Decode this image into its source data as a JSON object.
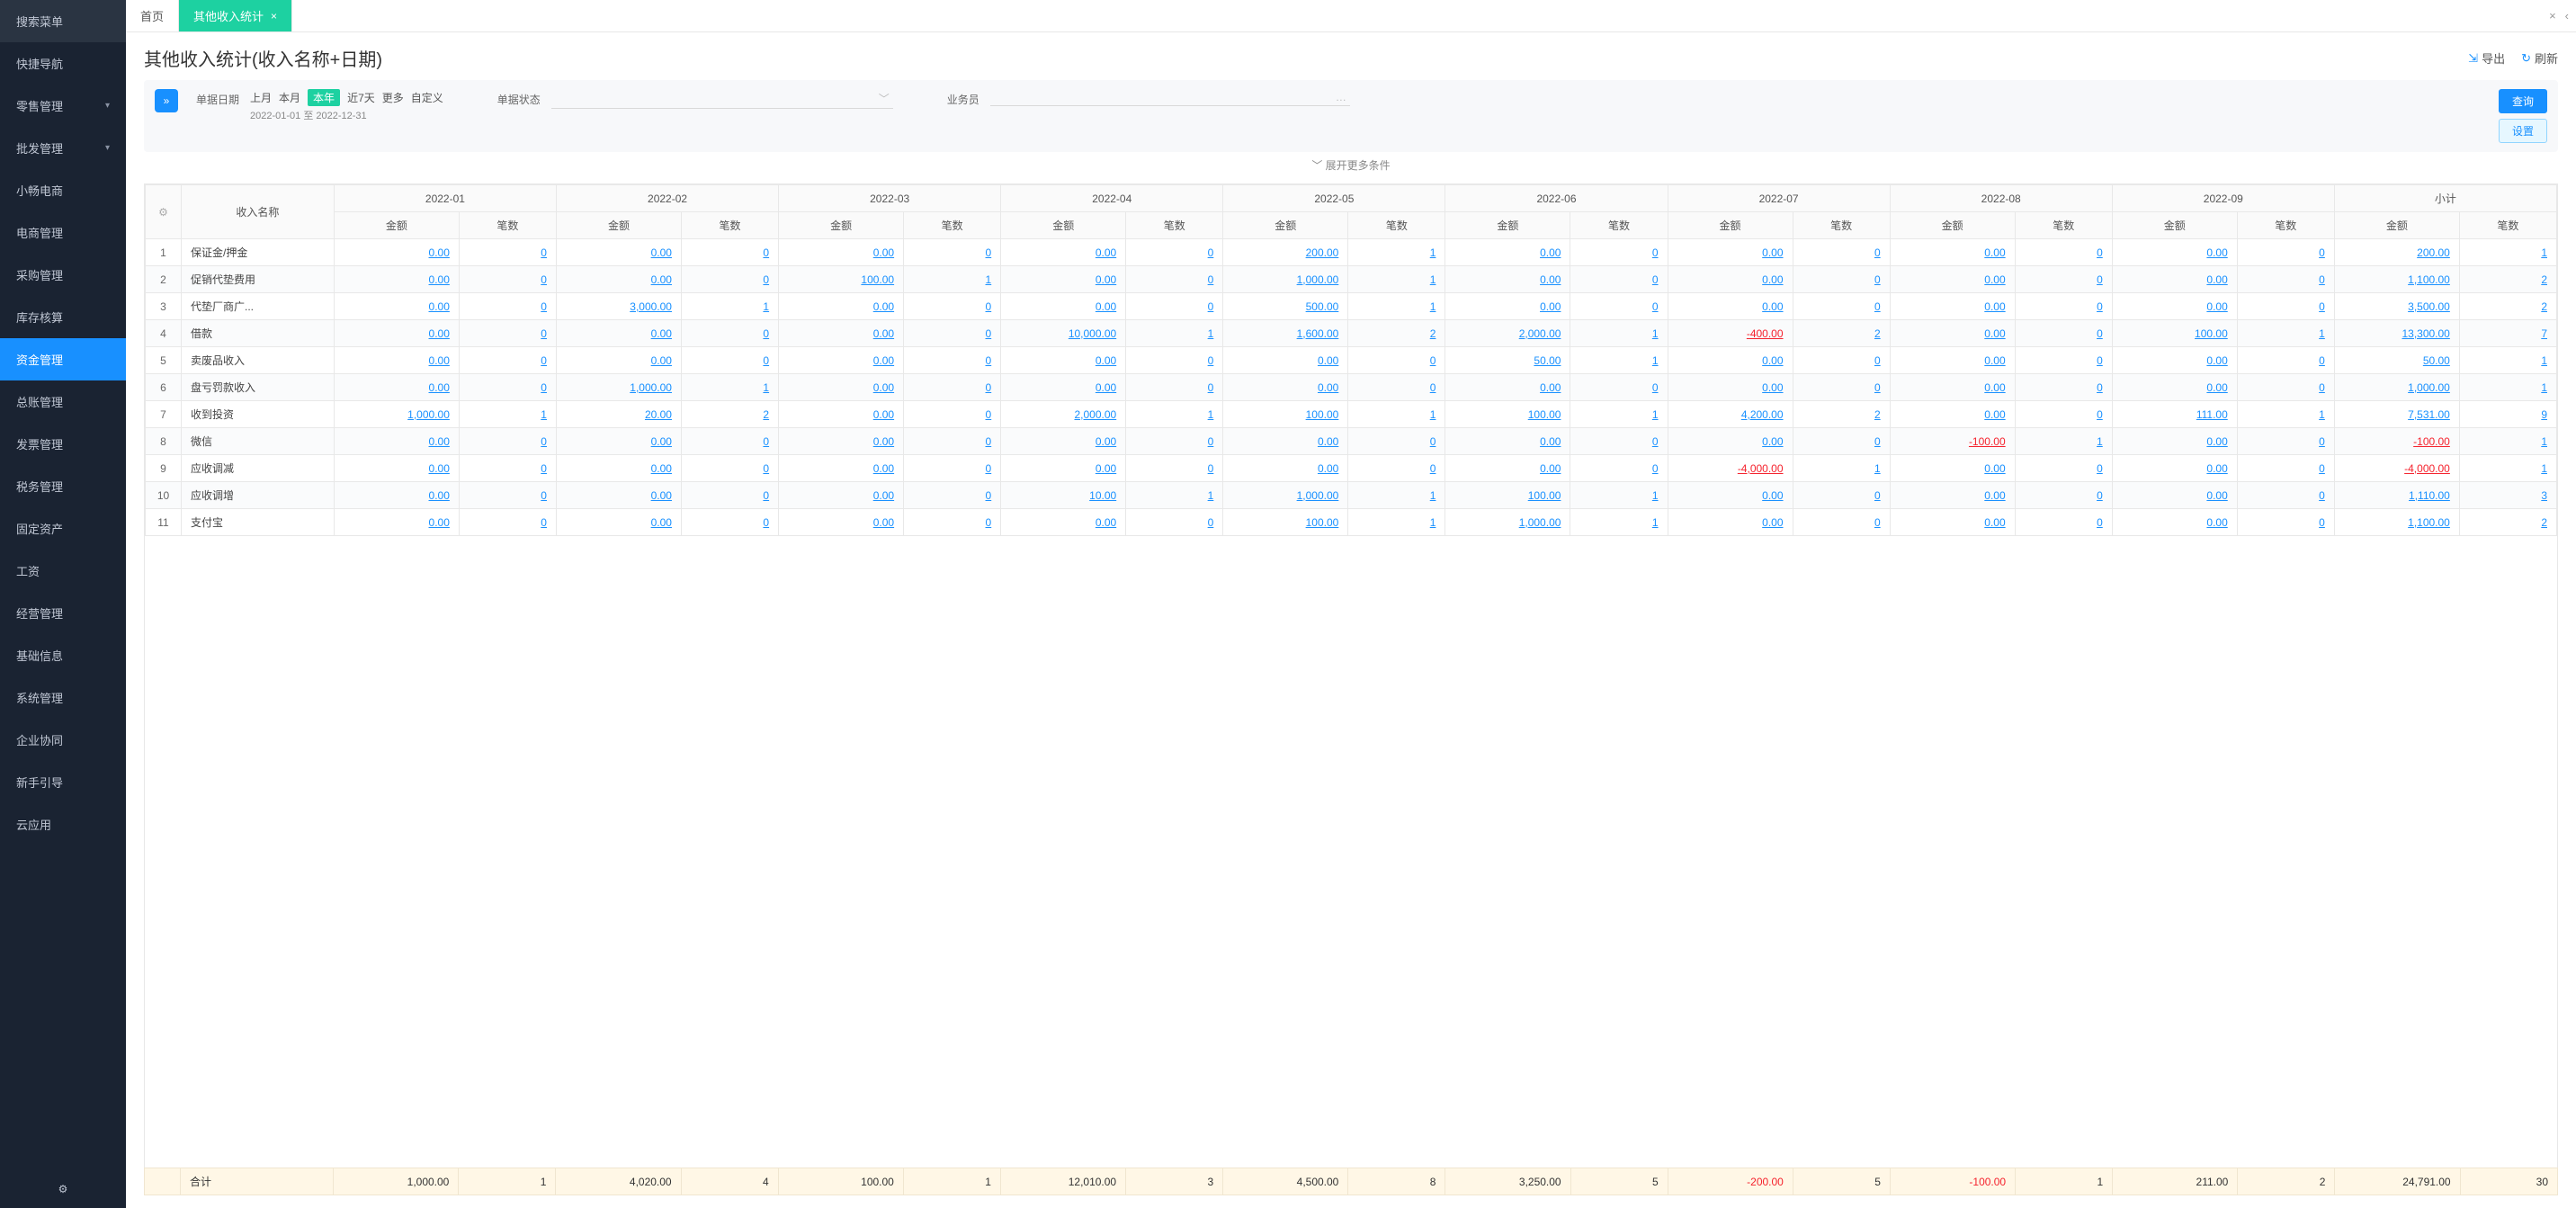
{
  "sidebar": {
    "items": [
      {
        "label": "搜索菜单",
        "sub": false
      },
      {
        "label": "快捷导航",
        "sub": false
      },
      {
        "label": "零售管理",
        "sub": true
      },
      {
        "label": "批发管理",
        "sub": true
      },
      {
        "label": "小畅电商",
        "sub": false
      },
      {
        "label": "电商管理",
        "sub": false
      },
      {
        "label": "采购管理",
        "sub": false
      },
      {
        "label": "库存核算",
        "sub": false
      },
      {
        "label": "资金管理",
        "sub": false,
        "active": true
      },
      {
        "label": "总账管理",
        "sub": false
      },
      {
        "label": "发票管理",
        "sub": false
      },
      {
        "label": "税务管理",
        "sub": false
      },
      {
        "label": "固定资产",
        "sub": false
      },
      {
        "label": "工资",
        "sub": false
      },
      {
        "label": "经营管理",
        "sub": false
      },
      {
        "label": "基础信息",
        "sub": false
      },
      {
        "label": "系统管理",
        "sub": false
      },
      {
        "label": "企业协同",
        "sub": false
      },
      {
        "label": "新手引导",
        "sub": false
      },
      {
        "label": "云应用",
        "sub": false
      }
    ]
  },
  "tabs": {
    "home": "首页",
    "active": "其他收入统计",
    "close": "×",
    "right_x": "×",
    "right_lt": "‹"
  },
  "title": "其他收入统计(收入名称+日期)",
  "actions": {
    "export": "导出",
    "refresh": "刷新"
  },
  "filter": {
    "date_label": "单据日期",
    "date_opts": [
      "上月",
      "本月",
      "本年",
      "近7天",
      "更多",
      "自定义"
    ],
    "date_active_idx": 2,
    "date_range": "2022-01-01 至 2022-12-31",
    "status_label": "单据状态",
    "sales_label": "业务员",
    "dropdown_caret": "﹀",
    "ellipsis": "…",
    "search_btn": "查询",
    "settings_btn": "设置",
    "expand": "展开更多条件",
    "expand_caret": "﹀"
  },
  "table": {
    "gear": "⚙",
    "header_name": "收入名称",
    "months": [
      "2022-01",
      "2022-02",
      "2022-03",
      "2022-04",
      "2022-05",
      "2022-06",
      "2022-07",
      "2022-08",
      "2022-09"
    ],
    "subtotal": "小计",
    "sub_amt": "金额",
    "sub_cnt": "笔数",
    "rows": [
      {
        "name": "保证金/押金",
        "cells": [
          [
            "0.00",
            "0"
          ],
          [
            "0.00",
            "0"
          ],
          [
            "0.00",
            "0"
          ],
          [
            "0.00",
            "0"
          ],
          [
            "200.00",
            "1"
          ],
          [
            "0.00",
            "0"
          ],
          [
            "0.00",
            "0"
          ],
          [
            "0.00",
            "0"
          ],
          [
            "0.00",
            "0"
          ]
        ],
        "subtotal": [
          "200.00",
          "1"
        ]
      },
      {
        "name": "促销代垫费用",
        "cells": [
          [
            "0.00",
            "0"
          ],
          [
            "0.00",
            "0"
          ],
          [
            "100.00",
            "1"
          ],
          [
            "0.00",
            "0"
          ],
          [
            "1,000.00",
            "1"
          ],
          [
            "0.00",
            "0"
          ],
          [
            "0.00",
            "0"
          ],
          [
            "0.00",
            "0"
          ],
          [
            "0.00",
            "0"
          ]
        ],
        "subtotal": [
          "1,100.00",
          "2"
        ]
      },
      {
        "name": "代垫厂商广...",
        "cells": [
          [
            "0.00",
            "0"
          ],
          [
            "3,000.00",
            "1"
          ],
          [
            "0.00",
            "0"
          ],
          [
            "0.00",
            "0"
          ],
          [
            "500.00",
            "1"
          ],
          [
            "0.00",
            "0"
          ],
          [
            "0.00",
            "0"
          ],
          [
            "0.00",
            "0"
          ],
          [
            "0.00",
            "0"
          ]
        ],
        "subtotal": [
          "3,500.00",
          "2"
        ]
      },
      {
        "name": "借款",
        "cells": [
          [
            "0.00",
            "0"
          ],
          [
            "0.00",
            "0"
          ],
          [
            "0.00",
            "0"
          ],
          [
            "10,000.00",
            "1"
          ],
          [
            "1,600.00",
            "2"
          ],
          [
            "2,000.00",
            "1"
          ],
          [
            "-400.00",
            "2"
          ],
          [
            "0.00",
            "0"
          ],
          [
            "100.00",
            "1"
          ]
        ],
        "subtotal": [
          "13,300.00",
          "7"
        ]
      },
      {
        "name": "卖废品收入",
        "cells": [
          [
            "0.00",
            "0"
          ],
          [
            "0.00",
            "0"
          ],
          [
            "0.00",
            "0"
          ],
          [
            "0.00",
            "0"
          ],
          [
            "0.00",
            "0"
          ],
          [
            "50.00",
            "1"
          ],
          [
            "0.00",
            "0"
          ],
          [
            "0.00",
            "0"
          ],
          [
            "0.00",
            "0"
          ]
        ],
        "subtotal": [
          "50.00",
          "1"
        ]
      },
      {
        "name": "盘亏罚款收入",
        "cells": [
          [
            "0.00",
            "0"
          ],
          [
            "1,000.00",
            "1"
          ],
          [
            "0.00",
            "0"
          ],
          [
            "0.00",
            "0"
          ],
          [
            "0.00",
            "0"
          ],
          [
            "0.00",
            "0"
          ],
          [
            "0.00",
            "0"
          ],
          [
            "0.00",
            "0"
          ],
          [
            "0.00",
            "0"
          ]
        ],
        "subtotal": [
          "1,000.00",
          "1"
        ]
      },
      {
        "name": "收到投资",
        "cells": [
          [
            "1,000.00",
            "1"
          ],
          [
            "20.00",
            "2"
          ],
          [
            "0.00",
            "0"
          ],
          [
            "2,000.00",
            "1"
          ],
          [
            "100.00",
            "1"
          ],
          [
            "100.00",
            "1"
          ],
          [
            "4,200.00",
            "2"
          ],
          [
            "0.00",
            "0"
          ],
          [
            "111.00",
            "1"
          ]
        ],
        "subtotal": [
          "7,531.00",
          "9"
        ]
      },
      {
        "name": "微信",
        "cells": [
          [
            "0.00",
            "0"
          ],
          [
            "0.00",
            "0"
          ],
          [
            "0.00",
            "0"
          ],
          [
            "0.00",
            "0"
          ],
          [
            "0.00",
            "0"
          ],
          [
            "0.00",
            "0"
          ],
          [
            "0.00",
            "0"
          ],
          [
            "-100.00",
            "1"
          ],
          [
            "0.00",
            "0"
          ]
        ],
        "subtotal": [
          "-100.00",
          "1"
        ]
      },
      {
        "name": "应收调减",
        "cells": [
          [
            "0.00",
            "0"
          ],
          [
            "0.00",
            "0"
          ],
          [
            "0.00",
            "0"
          ],
          [
            "0.00",
            "0"
          ],
          [
            "0.00",
            "0"
          ],
          [
            "0.00",
            "0"
          ],
          [
            "-4,000.00",
            "1"
          ],
          [
            "0.00",
            "0"
          ],
          [
            "0.00",
            "0"
          ]
        ],
        "subtotal": [
          "-4,000.00",
          "1"
        ]
      },
      {
        "name": "应收调增",
        "cells": [
          [
            "0.00",
            "0"
          ],
          [
            "0.00",
            "0"
          ],
          [
            "0.00",
            "0"
          ],
          [
            "10.00",
            "1"
          ],
          [
            "1,000.00",
            "1"
          ],
          [
            "100.00",
            "1"
          ],
          [
            "0.00",
            "0"
          ],
          [
            "0.00",
            "0"
          ],
          [
            "0.00",
            "0"
          ]
        ],
        "subtotal": [
          "1,110.00",
          "3"
        ]
      },
      {
        "name": "支付宝",
        "cells": [
          [
            "0.00",
            "0"
          ],
          [
            "0.00",
            "0"
          ],
          [
            "0.00",
            "0"
          ],
          [
            "0.00",
            "0"
          ],
          [
            "100.00",
            "1"
          ],
          [
            "1,000.00",
            "1"
          ],
          [
            "0.00",
            "0"
          ],
          [
            "0.00",
            "0"
          ],
          [
            "0.00",
            "0"
          ]
        ],
        "subtotal": [
          "1,100.00",
          "2"
        ]
      }
    ],
    "total_label": "合计",
    "totals": [
      [
        "1,000.00",
        "1"
      ],
      [
        "4,020.00",
        "4"
      ],
      [
        "100.00",
        "1"
      ],
      [
        "12,010.00",
        "3"
      ],
      [
        "4,500.00",
        "8"
      ],
      [
        "3,250.00",
        "5"
      ],
      [
        "-200.00",
        "5"
      ],
      [
        "-100.00",
        "1"
      ],
      [
        "211.00",
        "2"
      ]
    ],
    "totals_subtotal": [
      "24,791.00",
      "30"
    ]
  }
}
